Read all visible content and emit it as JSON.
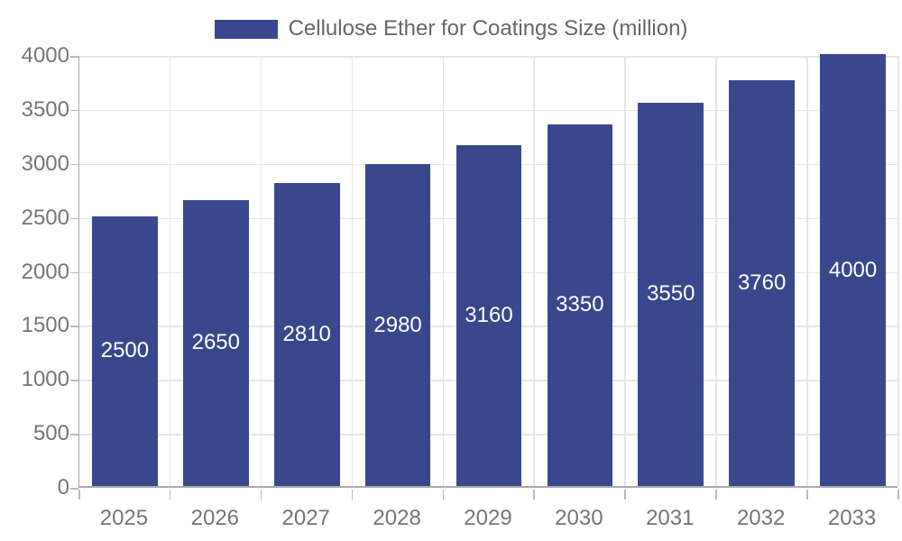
{
  "legend": {
    "label": "Cellulose Ether for Coatings Size (million)",
    "swatch_color": "#39488C"
  },
  "chart_data": {
    "type": "bar",
    "title": "Cellulose Ether for Coatings Size (million)",
    "categories": [
      "2025",
      "2026",
      "2027",
      "2028",
      "2029",
      "2030",
      "2031",
      "2032",
      "2033"
    ],
    "values": [
      2500,
      2650,
      2810,
      2980,
      3160,
      3350,
      3550,
      3760,
      4000
    ],
    "value_labels": [
      "2500",
      "2650",
      "2810",
      "2980",
      "3160",
      "3350",
      "3550",
      "3760",
      "4000"
    ],
    "xlabel": "",
    "ylabel": "",
    "ylim": [
      0,
      4000
    ],
    "ytick_step": 500,
    "yticks": [
      "0",
      "500",
      "1000",
      "1500",
      "2000",
      "2500",
      "3000",
      "3500",
      "4000"
    ],
    "grid": true,
    "legend_position": "top-center",
    "colors": {
      "bar": "#39488C",
      "value_label": "#ffffff",
      "axis_text": "#757575",
      "legend_text": "#666666",
      "gridline": "#e6e6e6",
      "axis_line": "#aaaaaa"
    }
  }
}
